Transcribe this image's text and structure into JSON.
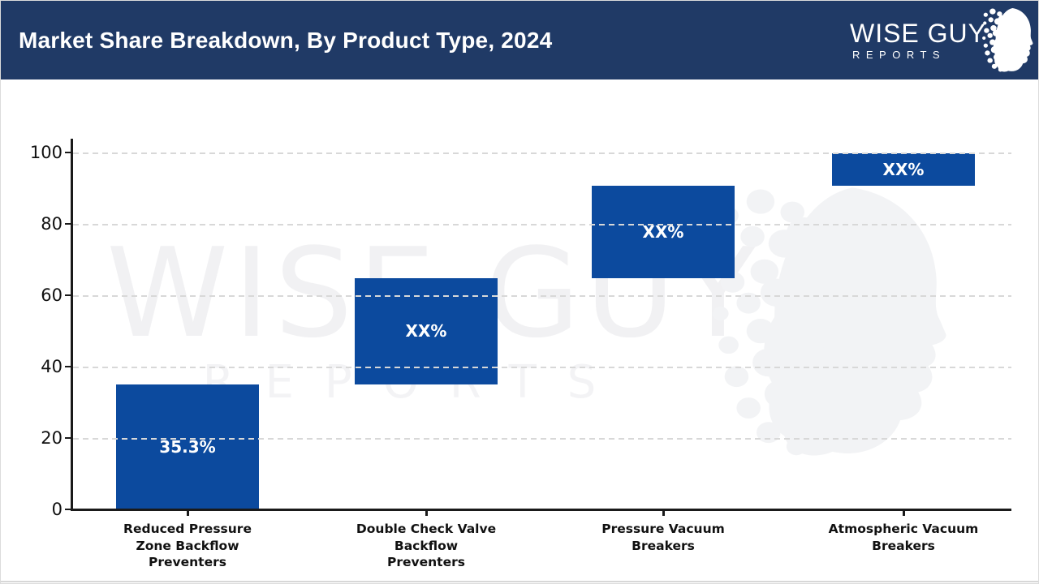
{
  "header": {
    "title": "Market Share Breakdown, By Product Type, 2024",
    "bg_color": "#203a66",
    "logo": {
      "line1": "WISE GUY",
      "line2": "REPORTS"
    }
  },
  "watermark": {
    "line1": "WISE GUY",
    "line2": "REPORTS"
  },
  "chart_data": {
    "type": "bar",
    "subtype": "waterfall",
    "title": "Market Share Breakdown, By Product Type, 2024",
    "categories": [
      "Reduced Pressure\nZone Backflow\nPreventers",
      "Double Check Valve\nBackflow\nPreventers",
      "Pressure Vacuum\nBreakers",
      "Atmospheric Vacuum\nBreakers"
    ],
    "segments": [
      {
        "start": 0,
        "end": 35.3,
        "label": "35.3%"
      },
      {
        "start": 35.3,
        "end": 65,
        "label": "XX%"
      },
      {
        "start": 65,
        "end": 91,
        "label": "XX%"
      },
      {
        "start": 91,
        "end": 100,
        "label": "XX%"
      }
    ],
    "xlabel": "",
    "ylabel": "",
    "ylim": [
      0,
      100
    ],
    "yticks": [
      0,
      20,
      40,
      60,
      80,
      100
    ],
    "grid": true,
    "grid_style": "dashed",
    "legend": false,
    "bar_color": "#0c4a9e",
    "label_color": "#ffffff"
  }
}
